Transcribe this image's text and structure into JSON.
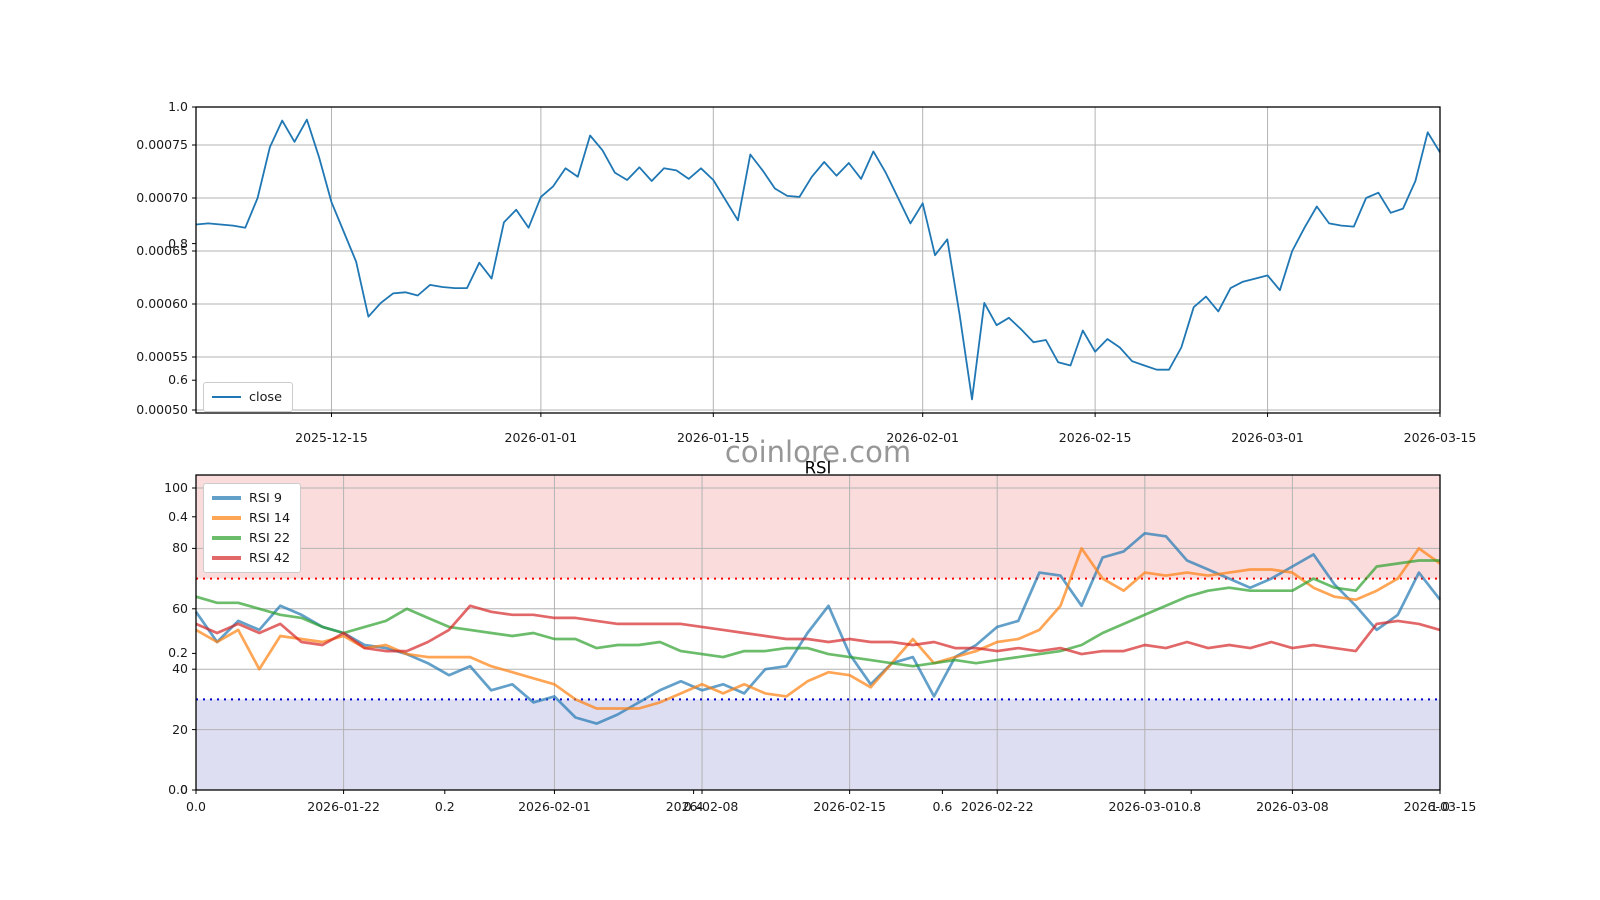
{
  "watermark": "coinlore.com",
  "overlay_axis": {
    "x_ticks": [
      "0.0",
      "0.2",
      "0.4",
      "0.6",
      "0.8",
      "1.0"
    ],
    "y_ticks": [
      "1.0",
      "0.8",
      "0.6",
      "0.4",
      "0.2",
      "0.0"
    ]
  },
  "chart_data": [
    {
      "type": "line",
      "title": "",
      "ylim": [
        0.000497,
        0.000785
      ],
      "ytick_labels": [
        "0.00050",
        "0.00055",
        "0.00060",
        "0.00065",
        "0.00070",
        "0.00075"
      ],
      "ytick_values": [
        0.0005,
        0.00055,
        0.0006,
        0.00065,
        0.0007,
        0.00075
      ],
      "xtick_labels": [
        "2025-12-15",
        "2026-01-01",
        "2026-01-15",
        "2026-02-01",
        "2026-02-15",
        "2026-03-01",
        "2026-03-15"
      ],
      "grid": true,
      "legend_position": "lower left",
      "x": [
        "2025-12-04",
        "2025-12-05",
        "2025-12-06",
        "2025-12-07",
        "2025-12-08",
        "2025-12-09",
        "2025-12-10",
        "2025-12-11",
        "2025-12-12",
        "2025-12-13",
        "2025-12-14",
        "2025-12-15",
        "2025-12-16",
        "2025-12-17",
        "2025-12-18",
        "2025-12-19",
        "2025-12-20",
        "2025-12-21",
        "2025-12-22",
        "2025-12-23",
        "2025-12-24",
        "2025-12-25",
        "2025-12-26",
        "2025-12-27",
        "2025-12-28",
        "2025-12-29",
        "2025-12-30",
        "2025-12-31",
        "2026-01-01",
        "2026-01-02",
        "2026-01-03",
        "2026-01-04",
        "2026-01-05",
        "2026-01-06",
        "2026-01-07",
        "2026-01-08",
        "2026-01-09",
        "2026-01-10",
        "2026-01-11",
        "2026-01-12",
        "2026-01-13",
        "2026-01-14",
        "2026-01-15",
        "2026-01-16",
        "2026-01-17",
        "2026-01-18",
        "2026-01-19",
        "2026-01-20",
        "2026-01-21",
        "2026-01-22",
        "2026-01-23",
        "2026-01-24",
        "2026-01-25",
        "2026-01-26",
        "2026-01-27",
        "2026-01-28",
        "2026-01-29",
        "2026-01-30",
        "2026-01-31",
        "2026-02-01",
        "2026-02-02",
        "2026-02-03",
        "2026-02-04",
        "2026-02-05",
        "2026-02-06",
        "2026-02-07",
        "2026-02-08",
        "2026-02-09",
        "2026-02-10",
        "2026-02-11",
        "2026-02-12",
        "2026-02-13",
        "2026-02-14",
        "2026-02-15",
        "2026-02-16",
        "2026-02-17",
        "2026-02-18",
        "2026-02-19",
        "2026-02-20",
        "2026-02-21",
        "2026-02-22",
        "2026-02-23",
        "2026-02-24",
        "2026-02-25",
        "2026-02-26",
        "2026-02-27",
        "2026-02-28",
        "2026-03-01",
        "2026-03-02",
        "2026-03-03",
        "2026-03-04",
        "2026-03-05",
        "2026-03-06",
        "2026-03-07",
        "2026-03-08",
        "2026-03-09",
        "2026-03-10",
        "2026-03-11",
        "2026-03-12",
        "2026-03-13",
        "2026-03-14",
        "2026-03-15"
      ],
      "series": [
        {
          "name": "close",
          "color": "#1f77b4",
          "values": [
            0.000675,
            0.000676,
            0.000675,
            0.000674,
            0.000672,
            0.0007,
            0.000748,
            0.000773,
            0.000753,
            0.000774,
            0.000738,
            0.000696,
            0.000668,
            0.00064,
            0.000588,
            0.000601,
            0.00061,
            0.000611,
            0.000608,
            0.000618,
            0.000616,
            0.000615,
            0.000615,
            0.000639,
            0.000624,
            0.000677,
            0.000689,
            0.000672,
            0.000701,
            0.000711,
            0.000728,
            0.00072,
            0.000759,
            0.000745,
            0.000724,
            0.000717,
            0.000729,
            0.000716,
            0.000728,
            0.000726,
            0.000718,
            0.000728,
            0.000717,
            0.000698,
            0.000679,
            0.000741,
            0.000726,
            0.000709,
            0.000702,
            0.000701,
            0.00072,
            0.000734,
            0.000721,
            0.000733,
            0.000718,
            0.000744,
            0.000724,
            0.0007,
            0.000676,
            0.000695,
            0.000646,
            0.000661,
            0.00059,
            0.00051,
            0.000601,
            0.00058,
            0.000587,
            0.000576,
            0.000564,
            0.000566,
            0.000545,
            0.000542,
            0.000575,
            0.000555,
            0.000567,
            0.000559,
            0.000546,
            0.000542,
            0.000538,
            0.000538,
            0.000559,
            0.000597,
            0.000607,
            0.000593,
            0.000615,
            0.000621,
            0.000624,
            0.000627,
            0.000613,
            0.00065,
            0.000672,
            0.000692,
            0.000676,
            0.000674,
            0.000673,
            0.0007,
            0.000705,
            0.000686,
            0.00069,
            0.000716,
            0.000762,
            0.000743
          ]
        }
      ]
    },
    {
      "type": "line",
      "title": "RSI",
      "ylim": [
        0,
        104
      ],
      "ytick_labels": [
        "0",
        "20",
        "40",
        "60",
        "80",
        "100"
      ],
      "ytick_values": [
        0,
        20,
        40,
        60,
        80,
        100
      ],
      "xtick_labels": [
        "2026-01-22",
        "2026-02-01",
        "2026-02-08",
        "2026-02-15",
        "2026-02-22",
        "2026-03-01",
        "2026-03-08",
        "2026-03-15"
      ],
      "grid": true,
      "legend_position": "upper left",
      "overbought": {
        "level": 70,
        "line_color": "#ff0000",
        "fill_color": "#fbdcdc"
      },
      "oversold": {
        "level": 30,
        "line_color": "#0000cc",
        "fill_color": "#dedef2"
      },
      "x": [
        "2026-01-15",
        "2026-01-16",
        "2026-01-17",
        "2026-01-18",
        "2026-01-19",
        "2026-01-20",
        "2026-01-21",
        "2026-01-22",
        "2026-01-23",
        "2026-01-24",
        "2026-01-25",
        "2026-01-26",
        "2026-01-27",
        "2026-01-28",
        "2026-01-29",
        "2026-01-30",
        "2026-01-31",
        "2026-02-01",
        "2026-02-02",
        "2026-02-03",
        "2026-02-04",
        "2026-02-05",
        "2026-02-06",
        "2026-02-07",
        "2026-02-08",
        "2026-02-09",
        "2026-02-10",
        "2026-02-11",
        "2026-02-12",
        "2026-02-13",
        "2026-02-14",
        "2026-02-15",
        "2026-02-16",
        "2026-02-17",
        "2026-02-18",
        "2026-02-19",
        "2026-02-20",
        "2026-02-21",
        "2026-02-22",
        "2026-02-23",
        "2026-02-24",
        "2026-02-25",
        "2026-02-26",
        "2026-02-27",
        "2026-02-28",
        "2026-03-01",
        "2026-03-02",
        "2026-03-03",
        "2026-03-04",
        "2026-03-05",
        "2026-03-06",
        "2026-03-07",
        "2026-03-08",
        "2026-03-09",
        "2026-03-10",
        "2026-03-11",
        "2026-03-12",
        "2026-03-13",
        "2026-03-14",
        "2026-03-15"
      ],
      "series": [
        {
          "name": "RSI 9",
          "color": "#1f77b4",
          "opacity": 0.7,
          "values": [
            59,
            49,
            56,
            53,
            61,
            58,
            54,
            52,
            48,
            47,
            45,
            42,
            38,
            41,
            33,
            35,
            29,
            31,
            24,
            22,
            25,
            29,
            33,
            36,
            33,
            35,
            32,
            40,
            41,
            52,
            61,
            45,
            35,
            42,
            44,
            31,
            44,
            48,
            54,
            56,
            72,
            71,
            61,
            77,
            79,
            85,
            84,
            76,
            73,
            70,
            67,
            70,
            74,
            78,
            68,
            61,
            53,
            58,
            72,
            63
          ]
        },
        {
          "name": "RSI 14",
          "color": "#ff7f0e",
          "opacity": 0.7,
          "values": [
            53,
            49,
            53,
            40,
            51,
            50,
            49,
            51,
            47,
            48,
            45,
            44,
            44,
            44,
            41,
            39,
            37,
            35,
            30,
            27,
            27,
            27,
            29,
            32,
            35,
            32,
            35,
            32,
            31,
            36,
            39,
            38,
            34,
            42,
            50,
            42,
            44,
            46,
            49,
            50,
            53,
            61,
            80,
            70,
            66,
            72,
            71,
            72,
            71,
            72,
            73,
            73,
            72,
            67,
            64,
            63,
            66,
            70,
            80,
            75
          ]
        },
        {
          "name": "RSI 22",
          "color": "#2ca02c",
          "opacity": 0.7,
          "values": [
            64,
            62,
            62,
            60,
            58,
            57,
            54,
            52,
            54,
            56,
            60,
            57,
            54,
            53,
            52,
            51,
            52,
            50,
            50,
            47,
            48,
            48,
            49,
            46,
            45,
            44,
            46,
            46,
            47,
            47,
            45,
            44,
            43,
            42,
            41,
            42,
            43,
            42,
            43,
            44,
            45,
            46,
            48,
            52,
            55,
            58,
            61,
            64,
            66,
            67,
            66,
            66,
            66,
            70,
            67,
            66,
            74,
            75,
            76,
            76
          ]
        },
        {
          "name": "RSI 42",
          "color": "#d62728",
          "opacity": 0.7,
          "values": [
            55,
            52,
            55,
            52,
            55,
            49,
            48,
            52,
            47,
            46,
            46,
            49,
            53,
            61,
            59,
            58,
            58,
            57,
            57,
            56,
            55,
            55,
            55,
            55,
            54,
            53,
            52,
            51,
            50,
            50,
            49,
            50,
            49,
            49,
            48,
            49,
            47,
            47,
            46,
            47,
            46,
            47,
            45,
            46,
            46,
            48,
            47,
            49,
            47,
            48,
            47,
            49,
            47,
            48,
            47,
            46,
            55,
            56,
            55,
            53
          ]
        }
      ]
    }
  ],
  "style": {
    "grid_color": "#b3b3b3",
    "spine_color": "#000000",
    "tick_color": "#000000"
  }
}
